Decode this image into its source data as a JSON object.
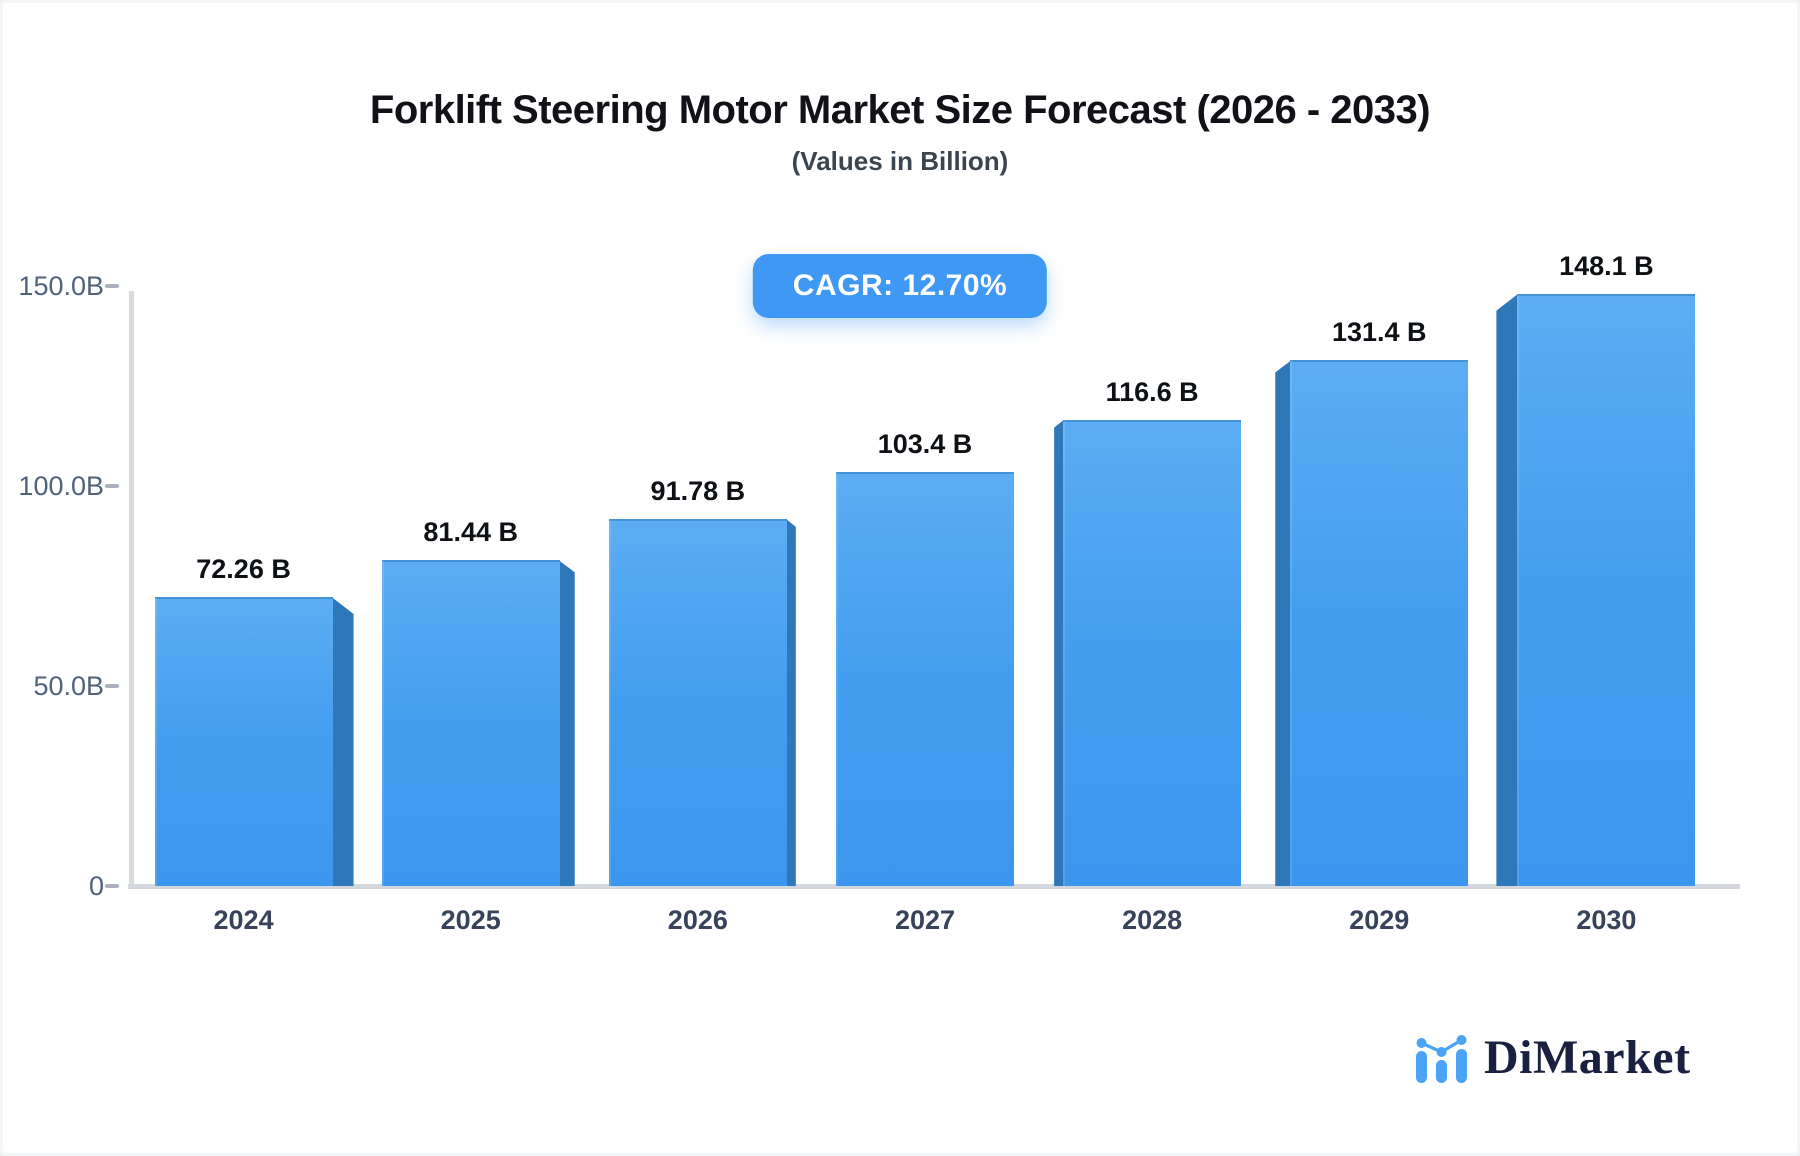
{
  "header": {
    "title": "Forklift Steering Motor Market Size Forecast (2026 - 2033)",
    "subtitle": "(Values in Billion)",
    "cagr_label": "CAGR: 12.70%"
  },
  "branding": {
    "name": "DiMarket",
    "icon": "bar-line-chart-icon",
    "icon_color": "#4AA3F5",
    "text_color": "#1A2140"
  },
  "chart_data": {
    "type": "bar",
    "title": "Forklift Steering Motor Market Size Forecast (2026 - 2033)",
    "subtitle": "(Values in Billion)",
    "cagr_percent": "12.70%",
    "categories": [
      "2024",
      "2025",
      "2026",
      "2027",
      "2028",
      "2029",
      "2030"
    ],
    "values": [
      72.26,
      81.44,
      91.78,
      103.4,
      116.6,
      131.4,
      148.1
    ],
    "value_labels": [
      "72.26 B",
      "81.44 B",
      "91.78 B",
      "103.4 B",
      "116.6 B",
      "131.4 B",
      "148.1 B"
    ],
    "yticks": [
      {
        "label": "150.0B",
        "value": 150
      },
      {
        "label": "100.0B",
        "value": 100
      },
      {
        "label": "50.0B",
        "value": 50
      },
      {
        "label": "0",
        "value": 0
      }
    ],
    "ylim": [
      0,
      150
    ],
    "grid": false,
    "legend": false,
    "style": "3d-perspective-columns",
    "colors": {
      "bar_gradient_top": "#5CADF3",
      "bar_gradient_bottom": "#3C96ED",
      "bar_side_face": "#2E77B8",
      "badge_background": "#3E98F4",
      "badge_text": "#FFFFFF",
      "axis_line": "#D8DBDF",
      "ytick_text": "#51627C",
      "category_text": "#36435A",
      "value_label_text": "#0D1014"
    }
  }
}
